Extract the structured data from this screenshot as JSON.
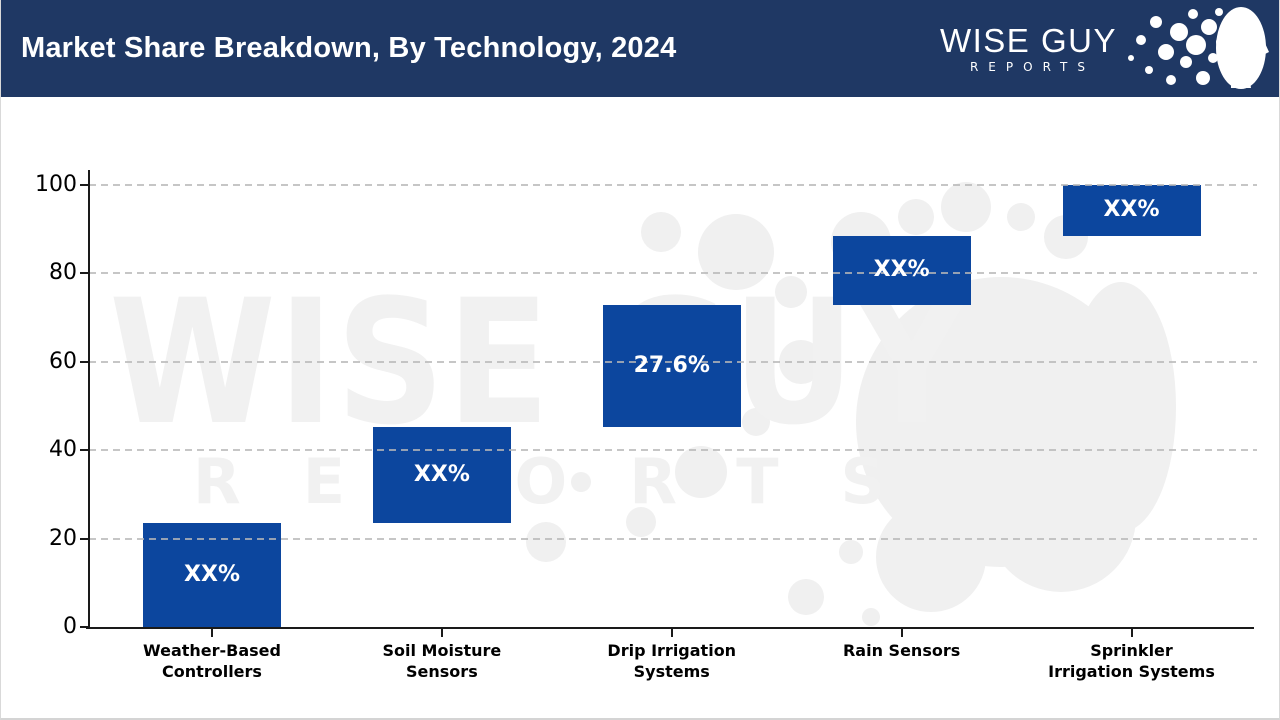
{
  "header": {
    "title": "Market Share Breakdown, By Technology, 2024",
    "bg_color": "#1f3864",
    "logo": {
      "line1": "WISE GUY",
      "line2": "REPORTS"
    }
  },
  "watermark": {
    "line1": "WISE GUY",
    "line2": "REPORTS"
  },
  "chart_data": {
    "type": "bar",
    "subtype": "waterfall",
    "title": "Market Share Breakdown, By Technology, 2024",
    "bar_color": "#0c469e",
    "grid": "horizontal dashed",
    "legend": "none",
    "ylim": [
      0,
      103
    ],
    "y_ticks": [
      0,
      20,
      40,
      60,
      80,
      100
    ],
    "categories": [
      [
        "Weather-Based",
        "Controllers"
      ],
      [
        "Soil Moisture",
        "Sensors"
      ],
      [
        "Drip Irrigation",
        "Systems"
      ],
      [
        "Rain Sensors"
      ],
      [
        "Sprinkler",
        "Irrigation Systems"
      ]
    ],
    "segments": [
      {
        "name": "Weather-Based Controllers",
        "start": 0,
        "end": 23.5,
        "value_label": "XX%"
      },
      {
        "name": "Soil Moisture Sensors",
        "start": 23.5,
        "end": 45.2,
        "value_label": "XX%"
      },
      {
        "name": "Drip Irrigation Systems",
        "start": 45.2,
        "end": 72.8,
        "value_label": "27.6%"
      },
      {
        "name": "Rain Sensors",
        "start": 72.8,
        "end": 88.4,
        "value_label": "XX%"
      },
      {
        "name": "Sprinkler Irrigation Systems",
        "start": 88.4,
        "end": 100,
        "value_label": "XX%"
      }
    ]
  }
}
